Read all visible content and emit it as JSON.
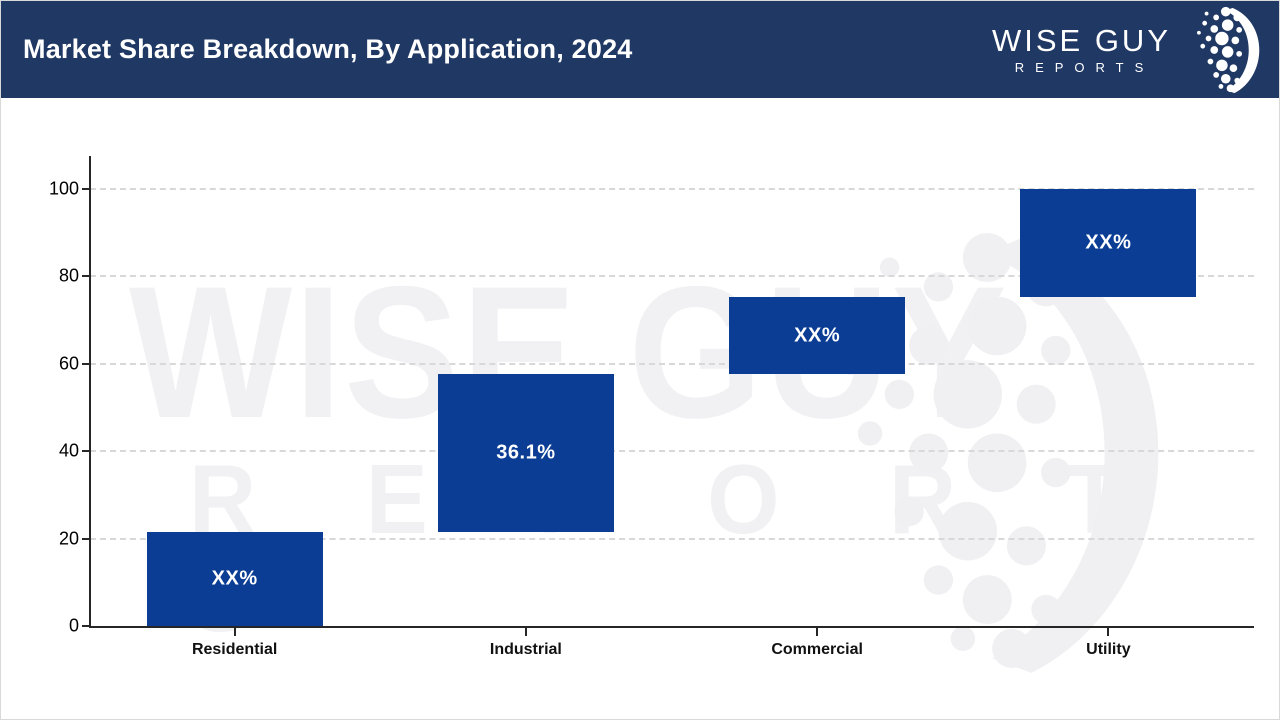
{
  "header": {
    "title": "Market Share Breakdown, By Application, 2024",
    "logo_line1": "WISE GUY",
    "logo_line2": "REPORTS"
  },
  "watermark": {
    "line1": "WISE GUY",
    "line2": "R E P O R T S"
  },
  "colors": {
    "header_bg": "#203864",
    "bar": "#0b3d94",
    "grid": "#d8d8d8",
    "axis": "#262626",
    "watermark": "#f1f1f4",
    "label_on_bar": "#ffffff"
  },
  "chart_data": {
    "type": "bar",
    "subtype": "waterfall",
    "title": "Market Share Breakdown, By Application, 2024",
    "xlabel": "",
    "ylabel": "",
    "categories": [
      "Residential",
      "Industrial",
      "Commercial",
      "Utility"
    ],
    "segments": [
      {
        "category": "Residential",
        "start": 0,
        "end": 21.5,
        "value": 21.5,
        "label": "XX%"
      },
      {
        "category": "Industrial",
        "start": 21.5,
        "end": 57.6,
        "value": 36.1,
        "label": "36.1%"
      },
      {
        "category": "Commercial",
        "start": 57.6,
        "end": 75.2,
        "value": 17.6,
        "label": "XX%"
      },
      {
        "category": "Utility",
        "start": 75.2,
        "end": 100,
        "value": 24.8,
        "label": "XX%"
      }
    ],
    "yticks": [
      0,
      20,
      40,
      60,
      80,
      100
    ],
    "ylim": [
      0,
      107
    ],
    "grid": "horizontal-dashed",
    "legend": "none",
    "bar_color": "#0b3d94"
  }
}
